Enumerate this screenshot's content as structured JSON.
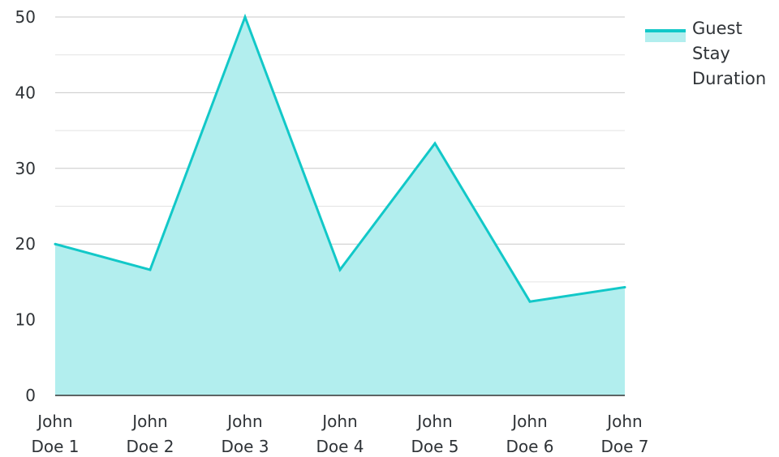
{
  "chart_data": {
    "type": "area",
    "title": "",
    "xlabel": "",
    "ylabel": "",
    "categories": [
      "John Doe 1",
      "John Doe 2",
      "John Doe 3",
      "John Doe 4",
      "John Doe 5",
      "John Doe 6",
      "John Doe 7"
    ],
    "series": [
      {
        "name": "Guest Stay Duration",
        "values": [
          20,
          16.6,
          50,
          16.6,
          33.3,
          12.4,
          14.3
        ]
      }
    ],
    "ylim": [
      0,
      50
    ],
    "yticks": [
      0,
      10,
      20,
      30,
      40,
      50
    ],
    "grid": true,
    "legend": "top-right",
    "colors": {
      "line": "#12c8c8",
      "fill": "#b2eeee",
      "grid_major": "#c8c8c8",
      "grid_minor": "#e3e3e3",
      "axis": "#333333"
    }
  },
  "legend": {
    "label": "Guest Stay Duration"
  }
}
